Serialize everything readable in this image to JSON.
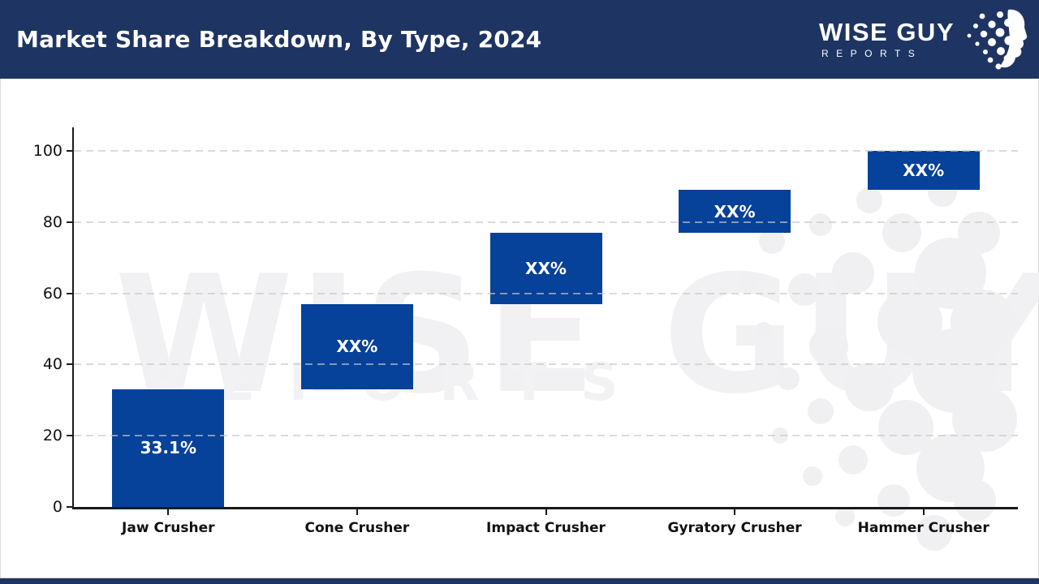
{
  "header": {
    "title": "Market Share Breakdown, By Type, 2024",
    "logo": {
      "line1": "WISE GUY",
      "line2": "REPORTS"
    },
    "bg_color": "#1e3462",
    "text_color": "#ffffff"
  },
  "watermark": {
    "line1": "WISE GUY",
    "line2": "REPORTS"
  },
  "chart_data": {
    "type": "bar",
    "subtype": "waterfall",
    "title": "Market Share Breakdown, By Type, 2024",
    "categories": [
      "Jaw Crusher",
      "Cone Crusher",
      "Impact Crusher",
      "Gyratory Crusher",
      "Hammer Crusher"
    ],
    "segments": [
      {
        "category": "Jaw Crusher",
        "start": 0.0,
        "end": 33.1,
        "label": "33.1%"
      },
      {
        "category": "Cone Crusher",
        "start": 33.1,
        "end": 57.0,
        "label": "XX%"
      },
      {
        "category": "Impact Crusher",
        "start": 57.0,
        "end": 77.0,
        "label": "XX%"
      },
      {
        "category": "Gyratory Crusher",
        "start": 77.0,
        "end": 89.0,
        "label": "XX%"
      },
      {
        "category": "Hammer Crusher",
        "start": 89.0,
        "end": 100.0,
        "label": "XX%"
      }
    ],
    "y_ticks": [
      0,
      20,
      40,
      60,
      80,
      100
    ],
    "ylim": [
      0,
      107
    ],
    "xlabel": "",
    "ylabel": "",
    "grid": "horizontal-dashed",
    "legend": "none",
    "bar_color": "#06419a",
    "bar_label_color": "#ffffff",
    "axis_color": "#1a1a1a"
  },
  "footer": {
    "bg_color": "#1e3462"
  }
}
